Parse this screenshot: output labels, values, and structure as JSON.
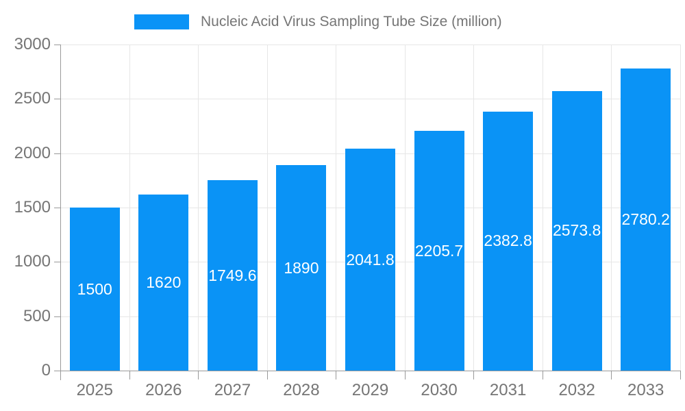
{
  "chart_data": {
    "type": "bar",
    "title": "Nucleic Acid Virus Sampling Tube Size (million)",
    "legend": [
      "Nucleic Acid Virus Sampling Tube Size (million)"
    ],
    "legend_position": "top",
    "categories": [
      "2025",
      "2026",
      "2027",
      "2028",
      "2029",
      "2030",
      "2031",
      "2032",
      "2033"
    ],
    "values": [
      1500,
      1620,
      1749.6,
      1890,
      2041.8,
      2205.7,
      2382.8,
      2573.8,
      2780.2
    ],
    "value_labels": [
      "1500",
      "1620",
      "1749.6",
      "1890",
      "2041.8",
      "2205.7",
      "2382.8",
      "2573.8",
      "2780.2"
    ],
    "xlabel": "",
    "ylabel": "",
    "ylim": [
      0,
      3000
    ],
    "ytick_step": 500,
    "yticks": [
      "0",
      "500",
      "1000",
      "1500",
      "2000",
      "2500",
      "3000"
    ],
    "grid": true,
    "colors": {
      "bar": "#0a93f6",
      "axis_line": "#999999",
      "grid_line": "#e6e6e6",
      "tick": "#999999",
      "axis_text": "#757575",
      "title_text": "#757575",
      "value_text": "#ffffff",
      "background": "#ffffff"
    }
  }
}
